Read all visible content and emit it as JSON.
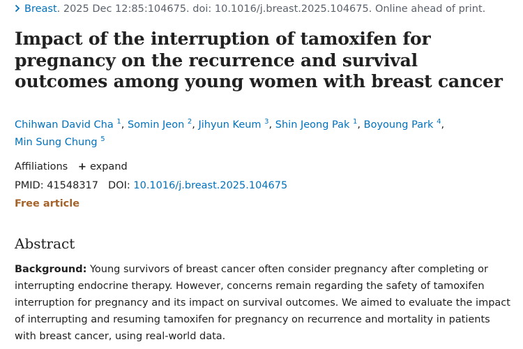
{
  "journal_line": {
    "journal": "Breast",
    "citation": ". 2025 Dec 12:85:104675. doi: 10.1016/j.breast.2025.104675. Online ahead of print."
  },
  "title": "Impact of the interruption of tamoxifen for pregnancy on the recurrence and survival outcomes among young women with breast cancer",
  "authors": [
    {
      "name": "Chihwan David Cha",
      "aff": "1",
      "after": ", "
    },
    {
      "name": "Somin Jeon",
      "aff": "2",
      "after": ", "
    },
    {
      "name": "Jihyun Keum",
      "aff": "3",
      "after": ", "
    },
    {
      "name": "Shin Jeong Pak",
      "aff": "1",
      "after": ", "
    },
    {
      "name": "Boyoung Park",
      "aff": "4",
      "after": ","
    },
    {
      "name": "Min Sung Chung",
      "aff": "5",
      "after": ""
    }
  ],
  "affiliations": {
    "label": "Affiliations",
    "expand_label": "expand"
  },
  "identifiers": {
    "pmid_label": "PMID:",
    "pmid": "41548317",
    "doi_label": "DOI:",
    "doi": "10.1016/j.breast.2025.104675"
  },
  "free_article_label": "Free article",
  "abstract": {
    "heading": "Abstract",
    "background_label": "Background:",
    "background_text": "Young survivors of breast cancer often consider pregnancy after completing or interrupting endocrine therapy. However, concerns remain regarding the safety of tamoxifen interruption for pregnancy and its impact on survival outcomes. We aimed to evaluate the impact of interrupting and resuming tamoxifen for pregnancy on recurrence and mortality in patients with breast cancer, using real-world data."
  },
  "colors": {
    "link": "#0071bc",
    "text": "#212121",
    "muted": "#5b616b",
    "free_article": "#a5632a"
  }
}
